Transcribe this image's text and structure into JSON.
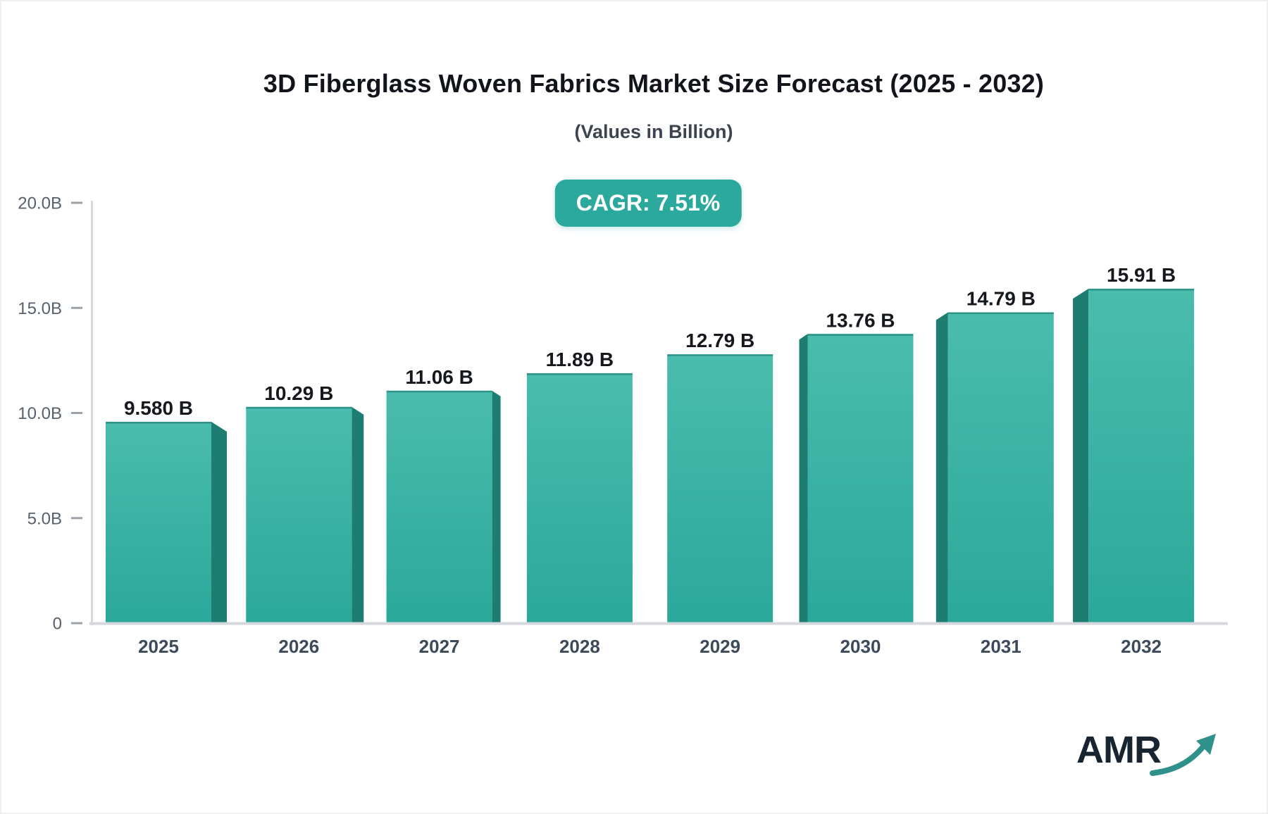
{
  "header": {
    "title": "3D Fiberglass Woven Fabrics Market Size Forecast (2025 - 2032)",
    "subtitle": "(Values in Billion)",
    "cagr_badge": "CAGR: 7.51%"
  },
  "chart_data": {
    "type": "bar",
    "title": "3D Fiberglass Woven Fabrics Market Size Forecast (2025 - 2032)",
    "subtitle": "(Values in Billion)",
    "cagr_percent": "7.51%",
    "categories": [
      "2025",
      "2026",
      "2027",
      "2028",
      "2029",
      "2030",
      "2031",
      "2032"
    ],
    "values": [
      9.58,
      10.29,
      11.06,
      11.89,
      12.79,
      13.76,
      14.79,
      15.91
    ],
    "value_labels": [
      "9.580 B",
      "10.29 B",
      "11.06 B",
      "11.89 B",
      "12.79 B",
      "13.76 B",
      "14.79 B",
      "15.91 B"
    ],
    "xlabel": "",
    "ylabel": "",
    "ylim": [
      0,
      20
    ],
    "yticks": [
      {
        "value": 0,
        "label": "0"
      },
      {
        "value": 5,
        "label": "5.0B"
      },
      {
        "value": 10,
        "label": "10.0B"
      },
      {
        "value": 15,
        "label": "15.0B"
      },
      {
        "value": 20,
        "label": "20.0B"
      }
    ],
    "grid": false,
    "legend": "none",
    "style": "3d-bars",
    "bar_color_top": "#4abcad",
    "bar_color_bottom": "#2ba89a",
    "bar_top_edge_color": "#2e9488",
    "bar_side_color": "#1e7d71",
    "axis_line_color": "#d6d8dd",
    "tick_dash_color": "#9aa2ab",
    "ytick_text_color": "#57616d",
    "xtick_text_color": "#3d4a5c",
    "value_label_color": "#15181c"
  },
  "branding": {
    "logo_text": "AMR",
    "logo_text_color": "#182530",
    "logo_arrow_color": "#2f918a"
  }
}
